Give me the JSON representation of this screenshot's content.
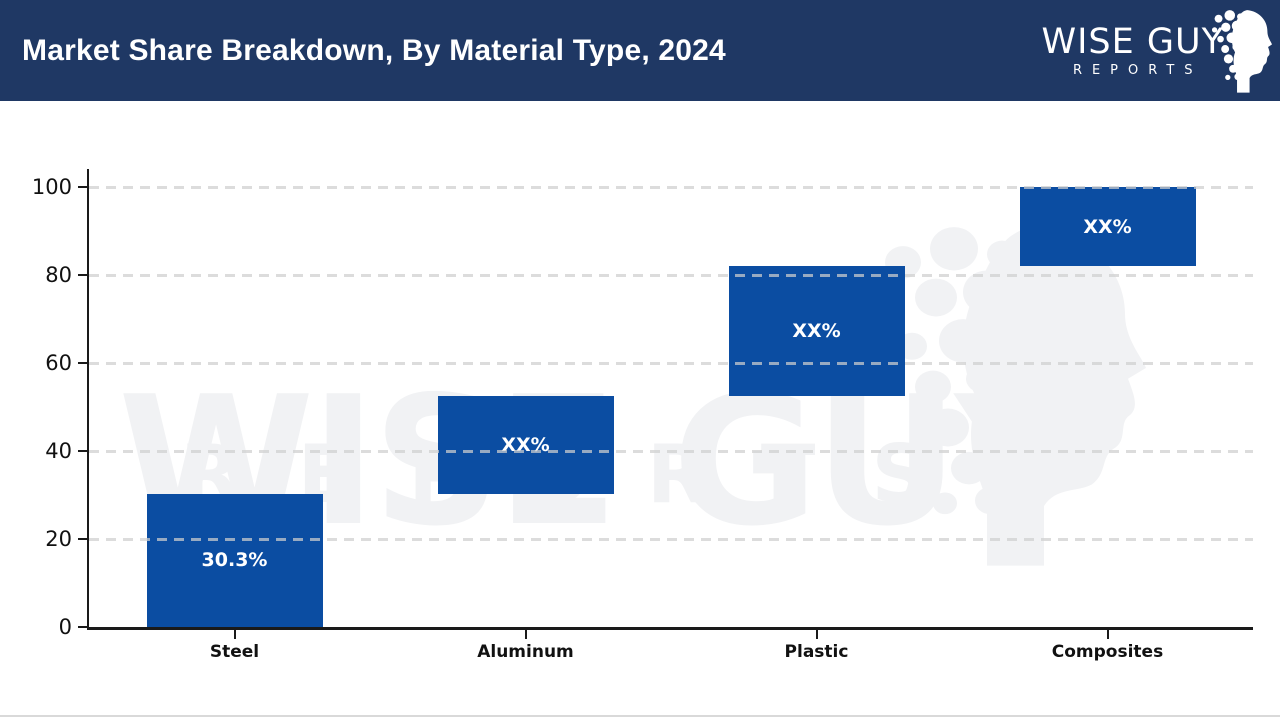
{
  "header": {
    "title": "Market Share Breakdown, By Material Type, 2024"
  },
  "logo": {
    "line1": "WISE GUY",
    "line2": "REPORTS"
  },
  "watermark": {
    "line1": "WISE GUY",
    "line2": "REPORTS"
  },
  "chart_data": {
    "type": "bar",
    "subtype": "waterfall",
    "title": "Market Share Breakdown, By Material Type, 2024",
    "categories": [
      "Steel",
      "Aluminum",
      "Plastic",
      "Composites"
    ],
    "bars": [
      {
        "category": "Steel",
        "start": 0,
        "end": 30.3,
        "label": "30.3%",
        "value_estimate": 30.3
      },
      {
        "category": "Aluminum",
        "start": 30.3,
        "end": 52.5,
        "label": "XX%",
        "value_estimate": 22.2
      },
      {
        "category": "Plastic",
        "start": 52.5,
        "end": 82,
        "label": "XX%",
        "value_estimate": 29.5
      },
      {
        "category": "Composites",
        "start": 82,
        "end": 100,
        "label": "XX%",
        "value_estimate": 18
      }
    ],
    "xlabel": "",
    "ylabel": "",
    "ylim": [
      0,
      100
    ],
    "yticks": [
      0,
      20,
      40,
      60,
      80,
      100
    ],
    "grid": "horizontal dashed",
    "legend": "none",
    "bar_color": "#0b4da2",
    "bar_label_color": "#ffffff"
  },
  "colors": {
    "header_bg": "#1f3864",
    "axis": "#1a1a1a",
    "grid": "#d9d9d9",
    "watermark": "#f1f2f4"
  }
}
